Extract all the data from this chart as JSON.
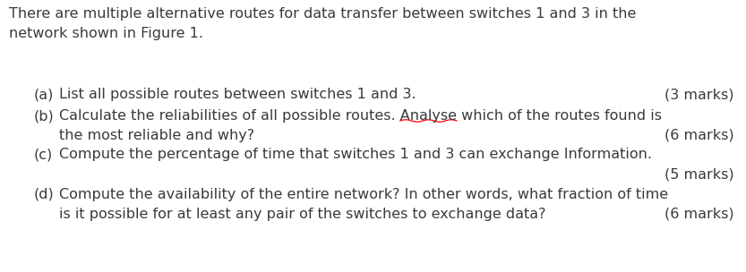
{
  "figsize": [
    8.33,
    3.04
  ],
  "dpi": 100,
  "background_color": "#ffffff",
  "text_color": "#3a3a3a",
  "font_family": "DejaVu Sans",
  "font_size": 11.5,
  "intro_line1": "There are multiple alternative routes for data transfer between switches 1 and 3 in the",
  "intro_line2": "network shown in Figure 1.",
  "items": [
    {
      "label": "(a)",
      "line1": "List all possible routes between switches 1 and 3.",
      "line2": null,
      "marks": "(3 marks)",
      "marks_on_line": 1,
      "underline_word": null
    },
    {
      "label": "(b)",
      "line1": "Calculate the reliabilities of all possible routes. Analyse which of the routes found is",
      "line2": "the most reliable and why?",
      "marks": "(6 marks)",
      "marks_on_line": 2,
      "underline_word": "Analyse",
      "underline_prefix": "Calculate the reliabilities of all possible routes. "
    },
    {
      "label": "(c)",
      "line1": "Compute the percentage of time that switches 1 and 3 can exchange Information.",
      "line2": null,
      "marks": "(5 marks)",
      "marks_on_line": 2,
      "underline_word": null
    },
    {
      "label": "(d)",
      "line1": "Compute the availability of the entire network? In other words, what fraction of time",
      "line2": "is it possible for at least any pair of the switches to exchange data?",
      "marks": "(6 marks)",
      "marks_on_line": 2,
      "underline_word": null
    }
  ]
}
